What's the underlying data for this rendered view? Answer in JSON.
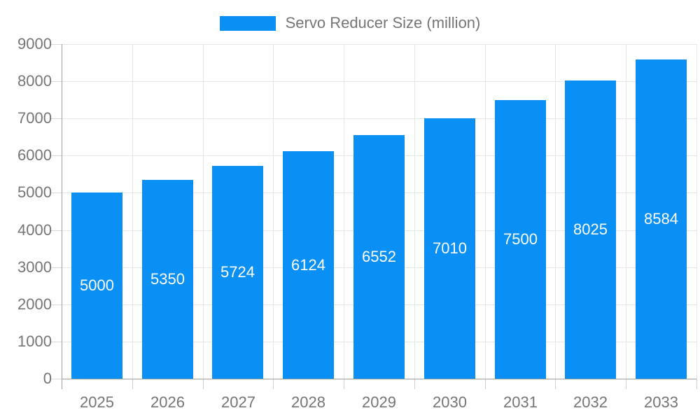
{
  "legend": {
    "label": "Servo Reducer Size (million)",
    "swatch_color": "#0a90f4"
  },
  "chart_data": {
    "type": "bar",
    "title": "",
    "xlabel": "",
    "ylabel": "",
    "categories": [
      "2025",
      "2026",
      "2027",
      "2028",
      "2029",
      "2030",
      "2031",
      "2032",
      "2033"
    ],
    "values": [
      5000,
      5350,
      5724,
      6124,
      6552,
      7010,
      7500,
      8025,
      8584
    ],
    "series_name": "Servo Reducer Size (million)",
    "ylim": [
      0,
      9000
    ],
    "ytick_step": 1000,
    "y_tick_labels": [
      "0",
      "1000",
      "2000",
      "3000",
      "4000",
      "5000",
      "6000",
      "7000",
      "8000",
      "9000"
    ],
    "grid": "on",
    "legend_position": "top-center",
    "value_labels": "inside-center-white",
    "colors": {
      "bar": "#0a90f4",
      "grid": "#e6e6e6",
      "axis": "#9e9e9e",
      "tick": "#cfcfcf",
      "text": "#757575",
      "value_label_text": "#ffffff",
      "background": "#ffffff"
    }
  }
}
